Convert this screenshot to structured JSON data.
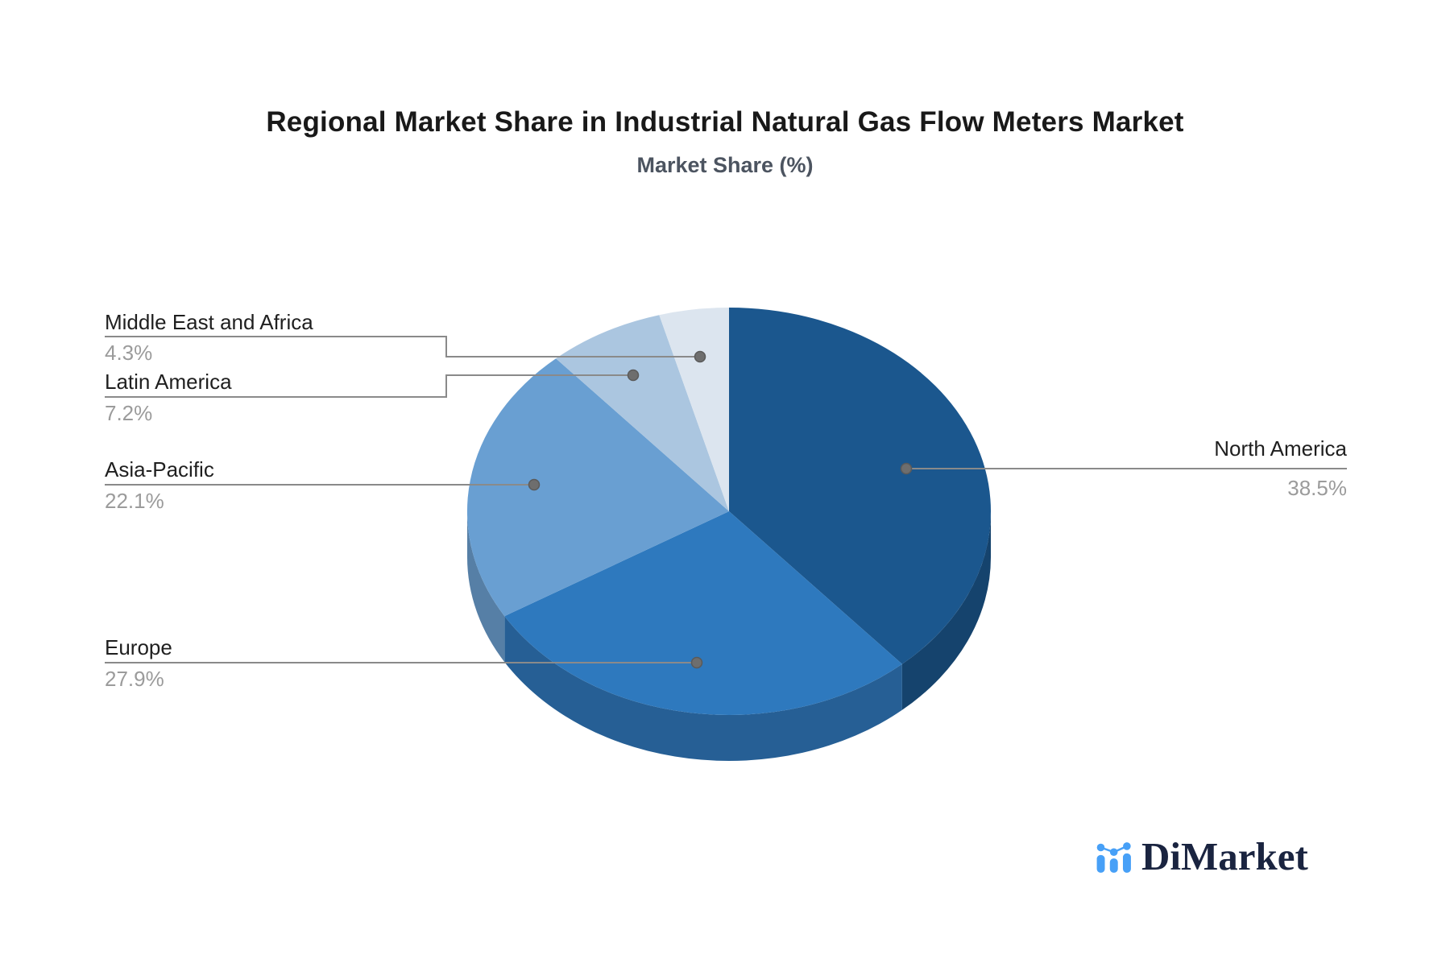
{
  "chart_data": {
    "type": "pie",
    "title": "Regional Market Share in Industrial Natural Gas Flow Meters Market",
    "subtitle": "Market Share (%)",
    "unit": "%",
    "direction": "clockwise",
    "start_angle_deg": 0,
    "labels_position": "outside-callout",
    "depth_3d": true,
    "slices": [
      {
        "label": "North America",
        "value": 38.5,
        "display": "38.5%",
        "color": "#1b578e",
        "side_color": "#15436d"
      },
      {
        "label": "Europe",
        "value": 27.9,
        "display": "27.9%",
        "color": "#2e79be",
        "side_color": "#265f95"
      },
      {
        "label": "Asia-Pacific",
        "value": 22.1,
        "display": "22.1%",
        "color": "#699fd2",
        "side_color": "#567fa6"
      },
      {
        "label": "Latin America",
        "value": 7.2,
        "display": "7.2%",
        "color": "#abc6e0",
        "side_color": "#8aa6c0"
      },
      {
        "label": "Middle East and Africa",
        "value": 4.3,
        "display": "4.3%",
        "color": "#dce5ef",
        "side_color": "#b6c4d3"
      }
    ]
  },
  "styles": {
    "title_color": "#191919",
    "subtitle_color": "#4c5460",
    "label_color": "#1f1f1f",
    "value_color": "#9b9b9b",
    "line_color": "#8a8a8a",
    "dot_color": "#6e6e6e",
    "logo_text_color": "#1a2440",
    "logo_icon_color": "#47a0f7"
  },
  "branding": {
    "name": "DiMarket",
    "icon": "mini-bar-chart-icon"
  }
}
